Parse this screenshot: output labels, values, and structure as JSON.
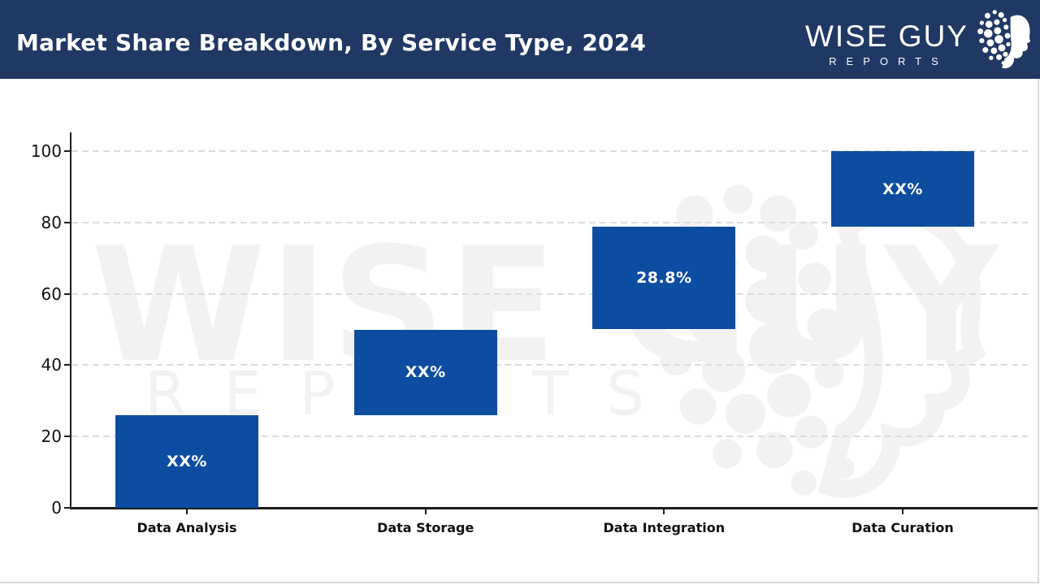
{
  "header": {
    "title": "Market Share Breakdown, By Service Type, 2024",
    "logo": {
      "name": "WISE GUY",
      "sub": "REPORTS"
    }
  },
  "watermark": {
    "name": "WISE GUY",
    "sub": "REPORTS"
  },
  "colors": {
    "header_bg": "#203864",
    "bar_fill": "#0d4da1",
    "bar_label_text": "#ffffff",
    "grid": "#dcdcdc",
    "axis": "#1c1c1c",
    "tick_label": "#111111",
    "watermark": "#f2f2f2"
  },
  "chart_data": {
    "type": "bar",
    "subtype": "floating-segment-waterfall",
    "title": "Market Share Breakdown, By Service Type, 2024",
    "categories": [
      "Data Analysis",
      "Data Storage",
      "Data Integration",
      "Data Curation"
    ],
    "bars": [
      {
        "category": "Data Analysis",
        "start": 0,
        "end": 26,
        "label": "XX%"
      },
      {
        "category": "Data Storage",
        "start": 26,
        "end": 50,
        "label": "XX%"
      },
      {
        "category": "Data Integration",
        "start": 50,
        "end": 78.8,
        "label": "28.8%"
      },
      {
        "category": "Data Curation",
        "start": 78.8,
        "end": 100,
        "label": "XX%"
      }
    ],
    "yticks": [
      0,
      20,
      40,
      60,
      80,
      100
    ],
    "ylim": [
      0,
      105
    ],
    "xlabel": "",
    "ylabel": "",
    "grid": "horizontal dashed",
    "legend": "none"
  }
}
